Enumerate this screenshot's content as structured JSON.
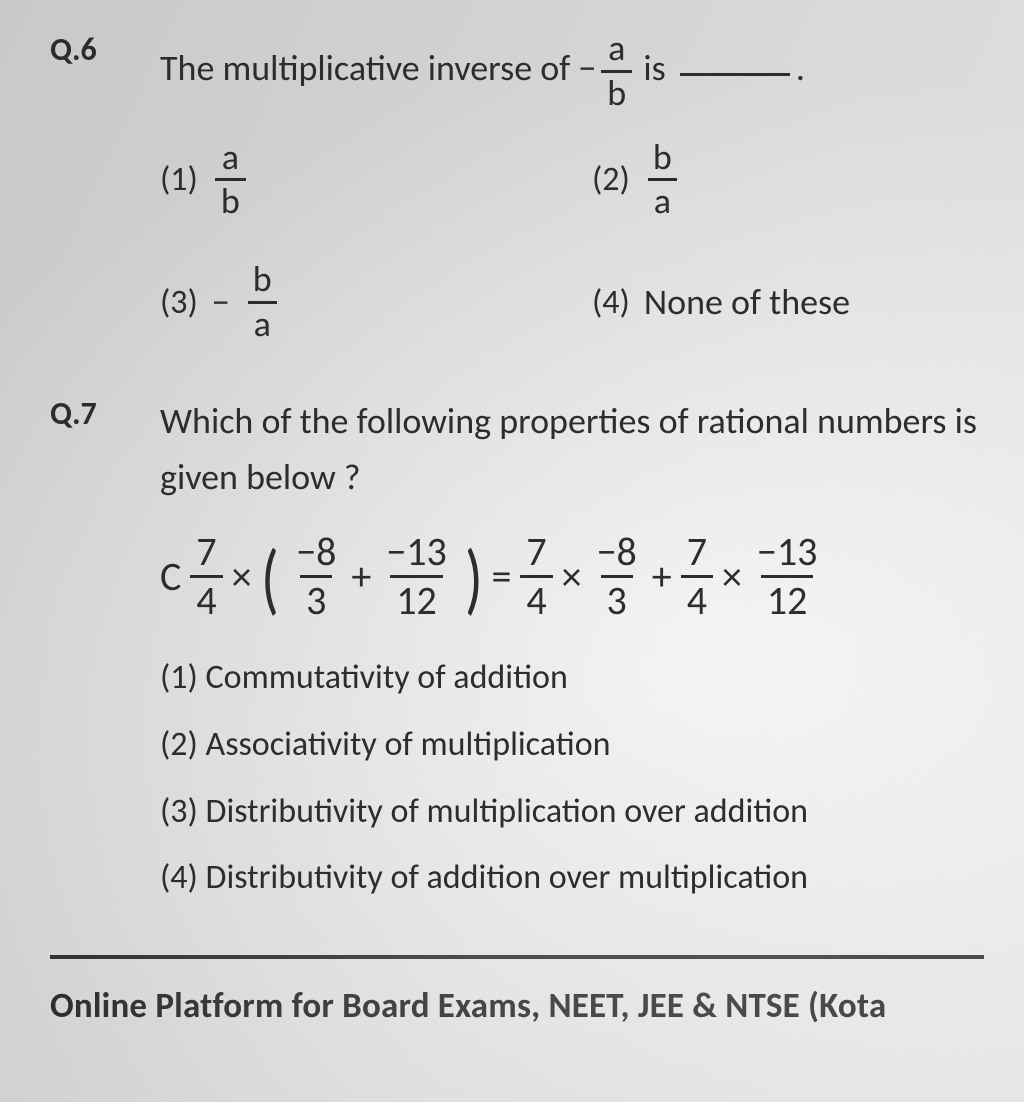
{
  "q6": {
    "num": "Q.6",
    "stem_pre": "The multiplicative inverse of ",
    "stem_frac": {
      "n": "a",
      "d": "b"
    },
    "stem_post": " is ",
    "stem_end": ".",
    "opts": {
      "o1": {
        "label": "(1)",
        "frac": {
          "n": "a",
          "d": "b"
        },
        "neg": false
      },
      "o2": {
        "label": "(2)",
        "frac": {
          "n": "b",
          "d": "a"
        },
        "neg": false
      },
      "o3": {
        "label": "(3)",
        "frac": {
          "n": "b",
          "d": "a"
        },
        "neg": true
      },
      "o4": {
        "label": "(4)",
        "text": "None of these"
      }
    }
  },
  "q7": {
    "num": "Q.7",
    "stem": "Which of the following properties of rational numbers is given below ?",
    "eq": {
      "c": "C",
      "f1": {
        "n": "7",
        "d": "4"
      },
      "times": "×",
      "f2": {
        "n": "−8",
        "d": "3"
      },
      "plus": "+",
      "f3": {
        "n": "−13",
        "d": "12"
      },
      "equals": "=",
      "f4": {
        "n": "7",
        "d": "4"
      },
      "f5": {
        "n": "−8",
        "d": "3"
      },
      "f6": {
        "n": "7",
        "d": "4"
      },
      "f7": {
        "n": "−13",
        "d": "12"
      }
    },
    "opts": {
      "o1": "(1) Commutativity of addition",
      "o2": "(2) Associativity of multiplication",
      "o3": "(3) Distributivity of multiplication over addition",
      "o4": "(4) Distributivity of addition over multiplication"
    }
  },
  "footer": "Online Platform for Board Exams, NEET, JEE & NTSE (Kota",
  "colors": {
    "text": "#2d2d2d",
    "bg_light": "#f4f5f5",
    "bg_dark": "#d8dadb"
  },
  "typography": {
    "family": "Segoe UI / Calibri",
    "stem_size_pt": 27,
    "option_size_pt": 26,
    "footer_weight": 700
  }
}
